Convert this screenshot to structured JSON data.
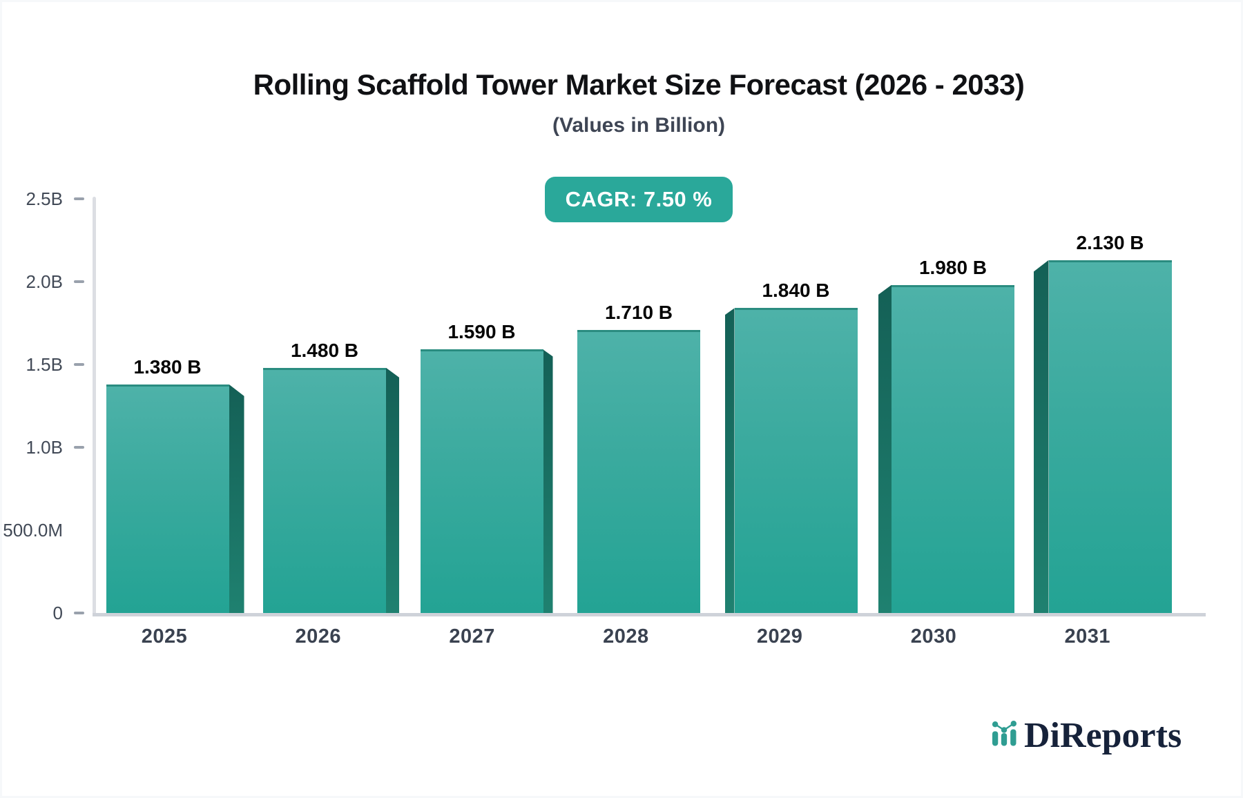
{
  "chart_data": {
    "type": "bar",
    "title": "Rolling Scaffold Tower Market Size Forecast (2026 - 2033)",
    "subtitle": "(Values in Billion)",
    "annotation": "CAGR: 7.50 %",
    "categories": [
      "2025",
      "2026",
      "2027",
      "2028",
      "2029",
      "2030",
      "2031"
    ],
    "values": [
      1.38,
      1.48,
      1.59,
      1.71,
      1.84,
      1.98,
      2.13
    ],
    "value_labels": [
      "1.380 B",
      "1.480 B",
      "1.590 B",
      "1.710 B",
      "1.840 B",
      "1.980 B",
      "2.130 B"
    ],
    "xlabel": "",
    "ylabel": "",
    "ylim": [
      0,
      2.5
    ],
    "y_ticks": [
      {
        "label": "2.5B",
        "value": 2.5,
        "dash": true
      },
      {
        "label": "2.0B",
        "value": 2.0,
        "dash": true
      },
      {
        "label": "1.5B",
        "value": 1.5,
        "dash": true
      },
      {
        "label": "1.0B",
        "value": 1.0,
        "dash": true
      },
      {
        "label": "500.0M",
        "value": 0.5,
        "dash": false
      },
      {
        "label": "0",
        "value": 0,
        "dash": true
      }
    ],
    "grid": false,
    "legend": false,
    "colors": {
      "accent": "#2aa89a",
      "bar_face_top": "#4eb2a9",
      "bar_face_bottom": "#23a394",
      "bar_side_dark": "#146056",
      "bar_top_edge": "#2a8c80",
      "axis_line": "#ced2d9"
    }
  },
  "logo": {
    "text": "DiReports"
  }
}
